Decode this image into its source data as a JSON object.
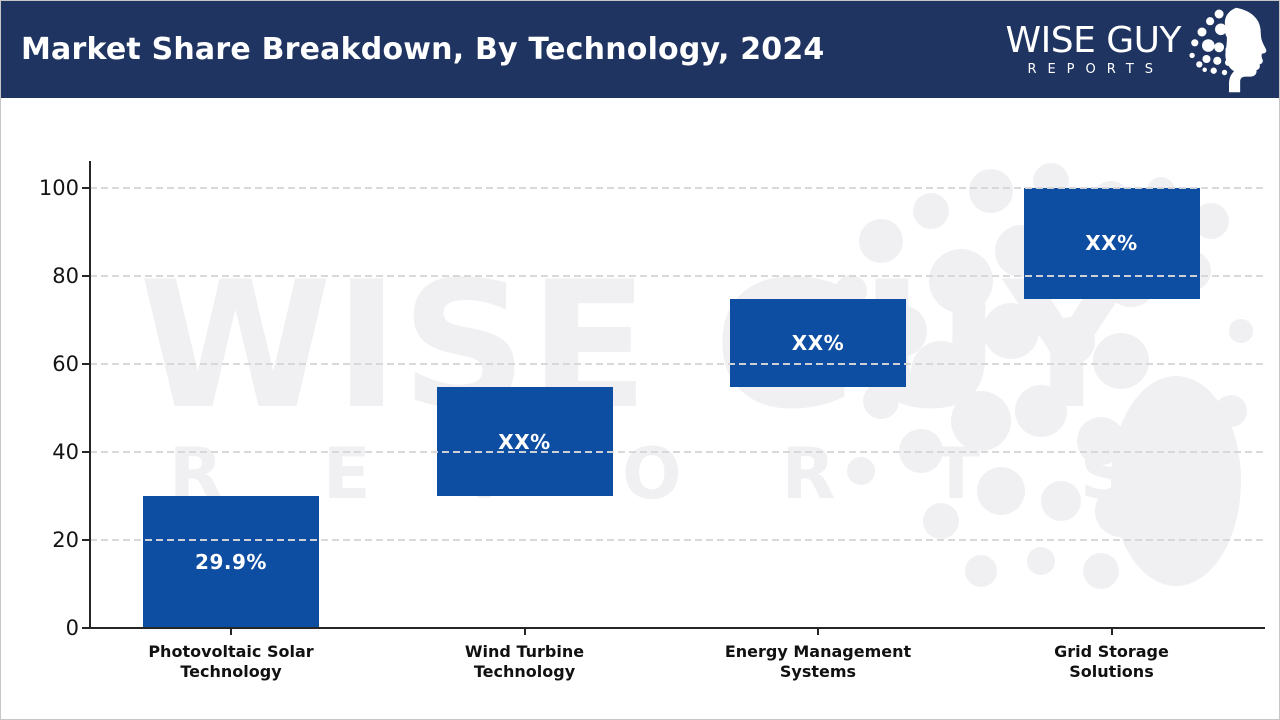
{
  "header": {
    "title": "Market Share Breakdown, By Technology, 2024",
    "background_color": "#1f3461",
    "logo": {
      "name": "WISE GUY REPORTS",
      "line1": "WISE GUY",
      "line2": "REPORTS"
    }
  },
  "watermark": {
    "line1": "WISE GUY",
    "line2": "REPORTS"
  },
  "chart_data": {
    "type": "bar",
    "subtype": "waterfall-floating-bars",
    "title": "Market Share Breakdown, By Technology, 2024",
    "categories": [
      {
        "line1": "Photovoltaic Solar",
        "line2": "Technology"
      },
      {
        "line1": "Wind Turbine",
        "line2": "Technology"
      },
      {
        "line1": "Energy Management",
        "line2": "Systems"
      },
      {
        "line1": "Grid Storage",
        "line2": "Solutions"
      }
    ],
    "bars": [
      {
        "category": "Photovoltaic Solar Technology",
        "label": "29.9%",
        "start": 0,
        "end": 29.9
      },
      {
        "category": "Wind Turbine Technology",
        "label": "XX%",
        "start": 29.9,
        "end": 54.8
      },
      {
        "category": "Energy Management Systems",
        "label": "XX%",
        "start": 54.8,
        "end": 74.8
      },
      {
        "category": "Grid Storage Solutions",
        "label": "XX%",
        "start": 74.8,
        "end": 100
      }
    ],
    "xlabel": "",
    "ylabel": "",
    "yticks": [
      0,
      20,
      40,
      60,
      80,
      100
    ],
    "ylim": [
      0,
      106
    ],
    "grid": "horizontal-dashed",
    "grid_color": "#d7d7d7",
    "legend": "none",
    "bar_color": "#0d4da2",
    "bar_label_color": "#ffffff",
    "axis_color": "#262626"
  }
}
